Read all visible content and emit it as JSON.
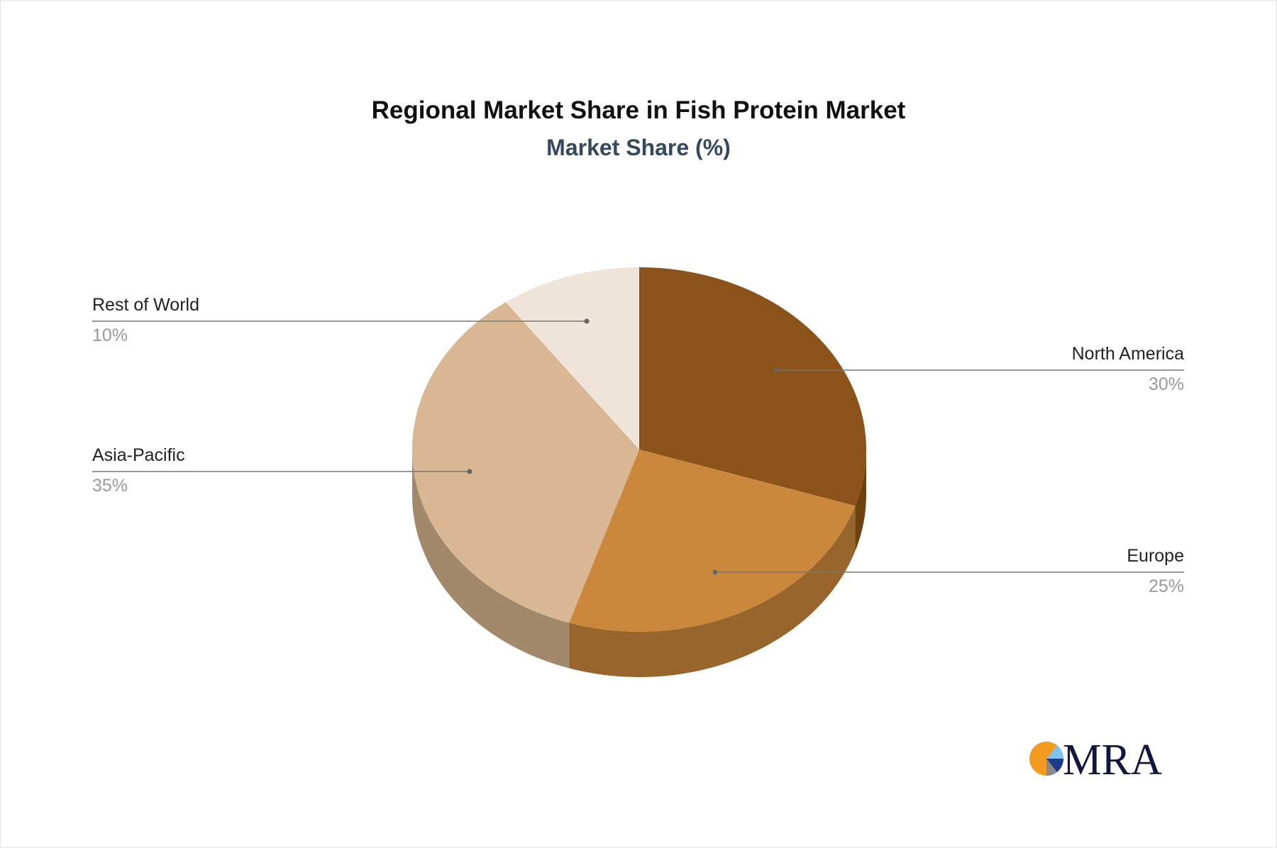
{
  "chart_data": {
    "type": "pie",
    "style": "3d",
    "title": "Regional Market Share in Fish Protein Market",
    "subtitle": "Market Share (%)",
    "slices": [
      {
        "label": "North America",
        "value": 30,
        "value_label": "30%",
        "color": "#8B5319",
        "side_color": "#6E4111"
      },
      {
        "label": "Europe",
        "value": 25,
        "value_label": "25%",
        "color": "#CB873C",
        "side_color": "#98662D"
      },
      {
        "label": "Asia-Pacific",
        "value": 35,
        "value_label": "35%",
        "color": "#D8B792",
        "side_color": "#A2896C"
      },
      {
        "label": "Rest of World",
        "value": 10,
        "value_label": "10%",
        "color": "#EFE4DA",
        "side_color": "#B3AAA2"
      }
    ],
    "legend": "callout-labels"
  },
  "logo": {
    "text": "MRA"
  }
}
